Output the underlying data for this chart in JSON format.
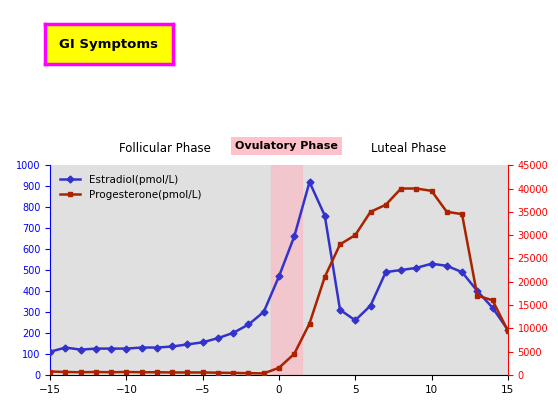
{
  "ylabel_left": "Estradiol(pmol/L)",
  "ylabel_right": "Progesterone(pmol/L)",
  "xlim": [
    -15,
    15
  ],
  "ylim_left": [
    0,
    1000
  ],
  "ylim_right": [
    0,
    45000
  ],
  "yticks_left": [
    0,
    100,
    200,
    300,
    400,
    500,
    600,
    700,
    800,
    900,
    1000
  ],
  "yticks_right": [
    0,
    5000,
    10000,
    15000,
    20000,
    25000,
    30000,
    35000,
    40000,
    45000
  ],
  "xticks": [
    -15,
    -10,
    -5,
    0,
    5,
    10,
    15
  ],
  "fig_bg_color": "#ffffff",
  "plot_bg_color": "#e0e0e0",
  "follicular_color": "#ccffff",
  "luteal_color": "#c8c8c8",
  "ovulatory_color": "#ffb6c1",
  "gi_symptoms_bg": "#ffff00",
  "gi_symptoms_border": "#ff00ff",
  "menstruation_bg": "#dd0033",
  "estradiol_color": "#3333cc",
  "progesterone_color": "#aa2200",
  "estradiol_x": [
    -15,
    -14,
    -13,
    -12,
    -11,
    -10,
    -9,
    -8,
    -7,
    -6,
    -5,
    -4,
    -3,
    -2,
    -1,
    0,
    1,
    2,
    3,
    4,
    5,
    6,
    7,
    8,
    9,
    10,
    11,
    12,
    13,
    14,
    15
  ],
  "estradiol_y": [
    110,
    130,
    120,
    125,
    125,
    125,
    130,
    130,
    135,
    145,
    155,
    175,
    200,
    240,
    300,
    470,
    660,
    920,
    760,
    310,
    260,
    330,
    490,
    500,
    510,
    530,
    520,
    490,
    400,
    320,
    215
  ],
  "progesterone_x": [
    -15,
    -14,
    -13,
    -12,
    -11,
    -10,
    -9,
    -8,
    -7,
    -6,
    -5,
    -4,
    -3,
    -2,
    -1,
    0,
    1,
    2,
    3,
    4,
    5,
    6,
    7,
    8,
    9,
    10,
    11,
    12,
    13,
    14,
    15
  ],
  "progesterone_y": [
    700,
    600,
    550,
    600,
    550,
    600,
    550,
    550,
    500,
    500,
    500,
    450,
    400,
    350,
    300,
    1500,
    4500,
    11000,
    21000,
    28000,
    30000,
    35000,
    36500,
    40000,
    40000,
    39500,
    35000,
    34500,
    17000,
    16000,
    9500
  ]
}
